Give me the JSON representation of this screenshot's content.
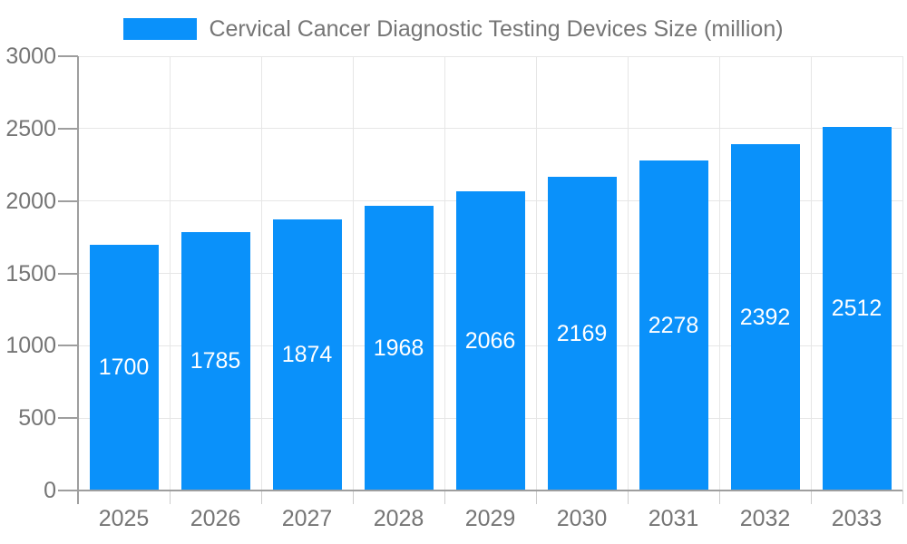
{
  "chart_data": {
    "type": "bar",
    "title": "Cervical Cancer Diagnostic Testing Devices Size (million)",
    "legend": {
      "position": "top",
      "label": "Cervical Cancer Diagnostic Testing Devices Size (million)"
    },
    "categories": [
      "2025",
      "2026",
      "2027",
      "2028",
      "2029",
      "2030",
      "2031",
      "2032",
      "2033"
    ],
    "series": [
      {
        "name": "Cervical Cancer Diagnostic Testing Devices Size (million)",
        "values": [
          1700,
          1785,
          1874,
          1968,
          2066,
          2169,
          2278,
          2392,
          2512
        ]
      }
    ],
    "value_labels": [
      1700,
      1785,
      1874,
      1968,
      2066,
      2169,
      2278,
      2392,
      2512
    ],
    "xlabel": "",
    "ylabel": "",
    "ylim": [
      0,
      3000
    ],
    "yticks": [
      0,
      500,
      1000,
      1500,
      2000,
      2500,
      3000
    ],
    "grid": true,
    "colors": {
      "bar": "#0a91fa",
      "value_label_text": "#ffffff",
      "axis_text": "#757575",
      "legend_text": "#757575",
      "grid_line": "#e6e6e6",
      "tick_line": "#cccccc",
      "axis_line": "#9e9e9e",
      "background": "#ffffff"
    }
  }
}
